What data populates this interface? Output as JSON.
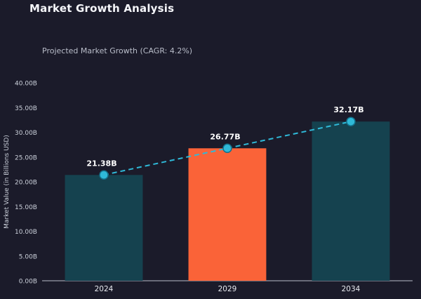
{
  "header": {
    "title": "Market Growth Analysis",
    "subtitle": "Projected Market Growth (CAGR: 4.2%)"
  },
  "chart_data": {
    "type": "bar",
    "title": "Market Growth Analysis",
    "subtitle": "Projected Market Growth (CAGR: 4.2%)",
    "categories": [
      "2024",
      "2029",
      "2034"
    ],
    "values": [
      21.38,
      26.77,
      32.17
    ],
    "value_labels": [
      "21.38B",
      "26.77B",
      "32.17B"
    ],
    "bar_colors": [
      "#15424f",
      "#fa6338",
      "#15424f"
    ],
    "trend_color": "#2fb9d8",
    "trend_point_stroke": "#14708a",
    "xlabel": "",
    "ylabel": "Market Value (in Billions USD)",
    "ylim": [
      0,
      40
    ],
    "yticks": [
      "0.00B",
      "5.00B",
      "10.00B",
      "15.00B",
      "20.00B",
      "25.00B",
      "30.00B",
      "35.00B",
      "40.00B"
    ],
    "grid": false,
    "legend": false,
    "trend_line_style": "dashed",
    "background": "#1b1b2a",
    "axis_color": "#b9bec9",
    "tick_label_color": "#ccd1db",
    "value_label_color": "#ffffff"
  }
}
